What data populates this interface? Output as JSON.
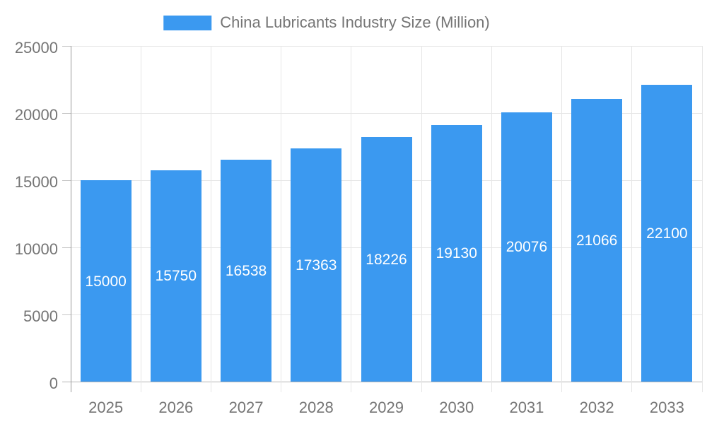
{
  "legend": {
    "label": "China Lubricants Industry Size (Million)"
  },
  "chart_data": {
    "type": "bar",
    "title": "China Lubricants Industry Size (Million)",
    "categories": [
      "2025",
      "2026",
      "2027",
      "2028",
      "2029",
      "2030",
      "2031",
      "2032",
      "2033"
    ],
    "series": [
      {
        "name": "China Lubricants Industry Size (Million)",
        "values": [
          15000,
          15750,
          16538,
          17363,
          18226,
          19130,
          20076,
          21066,
          22100
        ]
      }
    ],
    "bar_value_labels": [
      "15000",
      "15750",
      "16538",
      "17363",
      "18226",
      "19130",
      "20076",
      "21066",
      "22100"
    ],
    "xlabel": "",
    "ylabel": "",
    "ylim": [
      0,
      25000
    ],
    "yticks": [
      0,
      5000,
      10000,
      15000,
      20000,
      25000
    ],
    "ytick_labels": [
      "0",
      "5000",
      "10000",
      "15000",
      "20000",
      "25000"
    ],
    "grid": true,
    "legend_position": "top-center",
    "colors": {
      "bar": "#3b99f0",
      "bar_label": "#ffffff",
      "axis_text": "#757575",
      "grid_line": "#e6e6e6",
      "axis_line": "#999999",
      "zero_line": "#b3b3b3"
    }
  }
}
